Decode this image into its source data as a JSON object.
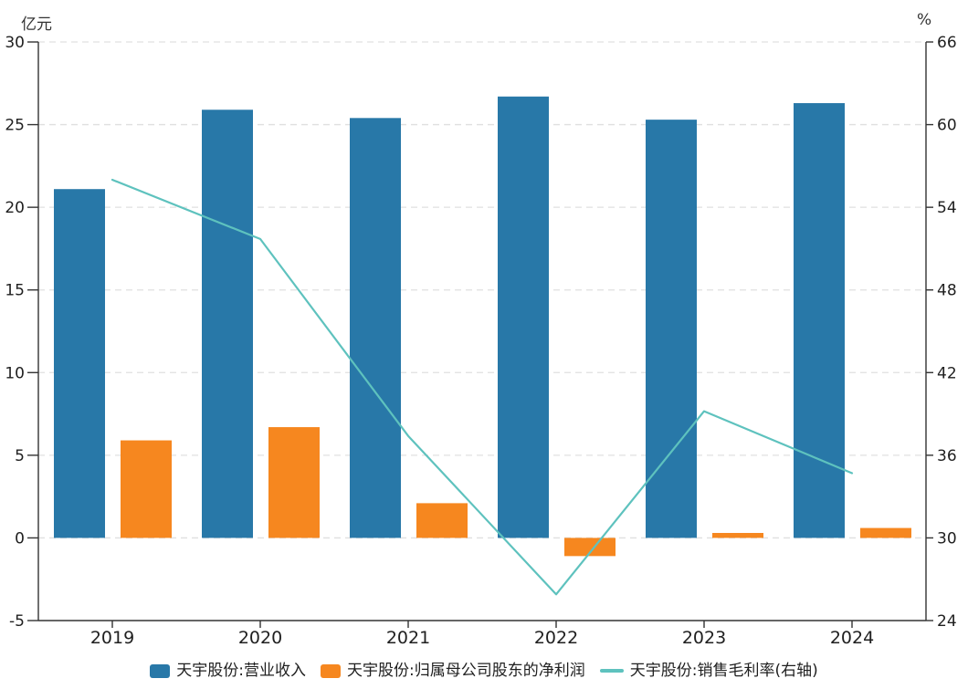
{
  "chart_data": {
    "type": "combo",
    "subtype": "grouped-bar with line on secondary axis",
    "title": "",
    "categories": [
      "2019",
      "2020",
      "2021",
      "2022",
      "2023",
      "2024"
    ],
    "series": [
      {
        "name": "天宇股份:营业收入",
        "type": "bar",
        "axis": "left",
        "color": "#2878a8",
        "values": [
          21.1,
          25.9,
          25.4,
          26.7,
          25.3,
          26.3
        ]
      },
      {
        "name": "天宇股份:归属母公司股东的净利润",
        "type": "bar",
        "axis": "left",
        "color": "#f6871f",
        "values": [
          5.9,
          6.7,
          2.1,
          -1.1,
          0.3,
          0.6
        ]
      },
      {
        "name": "天宇股份:销售毛利率(右轴)",
        "type": "line",
        "axis": "right",
        "color": "#5ec2be",
        "values": [
          56.0,
          51.7,
          37.4,
          25.9,
          39.2,
          34.7
        ]
      }
    ],
    "left_axis": {
      "unit": "亿元",
      "min": -5,
      "max": 30,
      "ticks": [
        30,
        25,
        20,
        15,
        10,
        5,
        0,
        -5
      ]
    },
    "right_axis": {
      "unit": "%",
      "min": 24,
      "max": 66,
      "ticks": [
        66,
        60,
        54,
        48,
        42,
        36,
        30,
        24
      ]
    },
    "grid": "horizontal dashed",
    "grid_color": "#e0e0e0",
    "axis_color": "#333333",
    "legend_position": "bottom-center"
  }
}
